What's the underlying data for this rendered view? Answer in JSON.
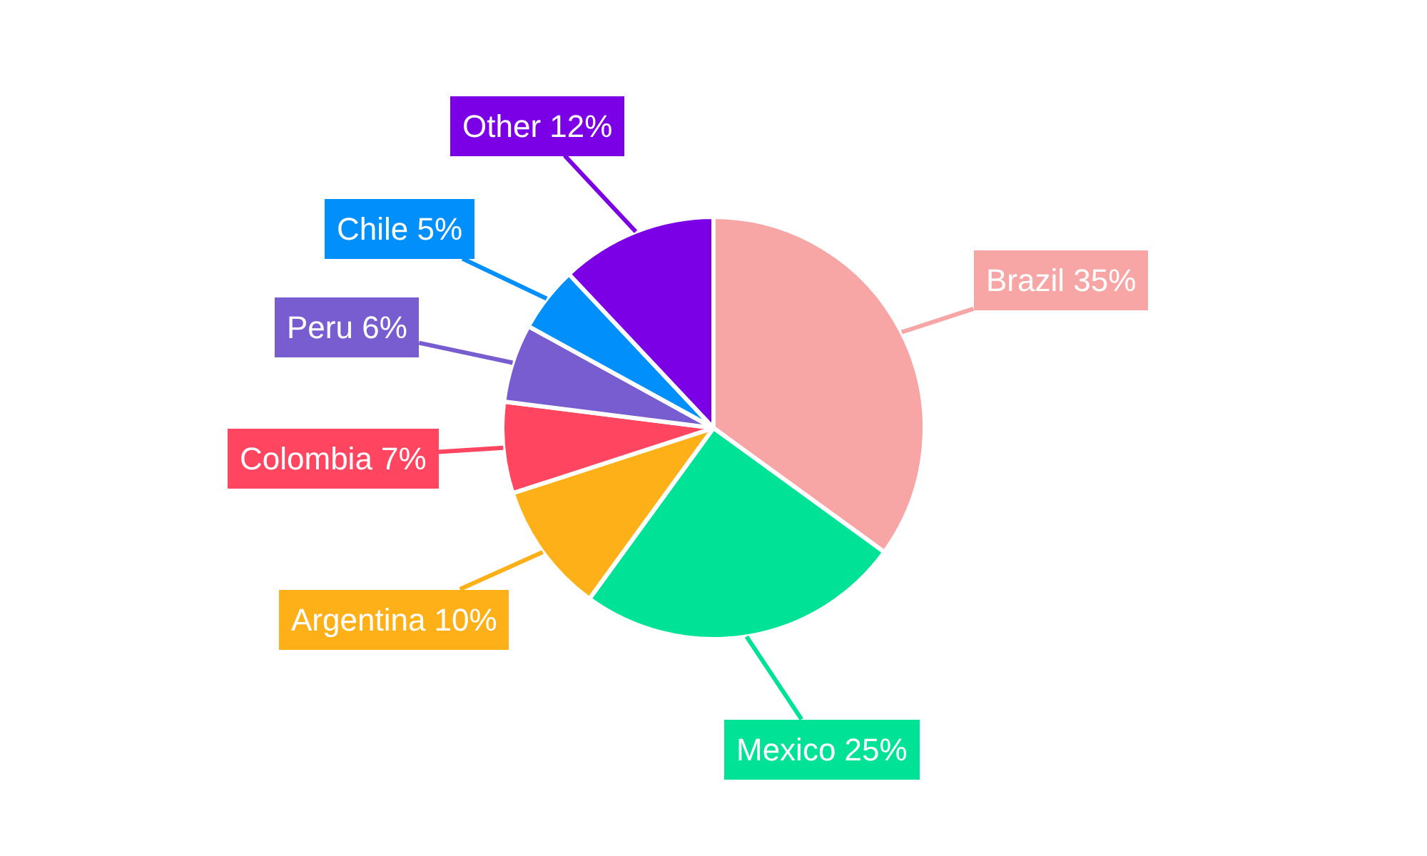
{
  "chart_data": {
    "type": "pie",
    "categories": [
      "Brazil",
      "Mexico",
      "Argentina",
      "Colombia",
      "Peru",
      "Chile",
      "Other"
    ],
    "values": [
      35,
      25,
      10,
      7,
      6,
      5,
      12
    ],
    "value_labels": [
      "35%",
      "25%",
      "10%",
      "7%",
      "6%",
      "5%",
      "12%"
    ],
    "colors": [
      "#f8a5a5",
      "#00e396",
      "#feb019",
      "#ff4560",
      "#775dd0",
      "#008ffb",
      "#7b00e6"
    ],
    "legend": false
  }
}
